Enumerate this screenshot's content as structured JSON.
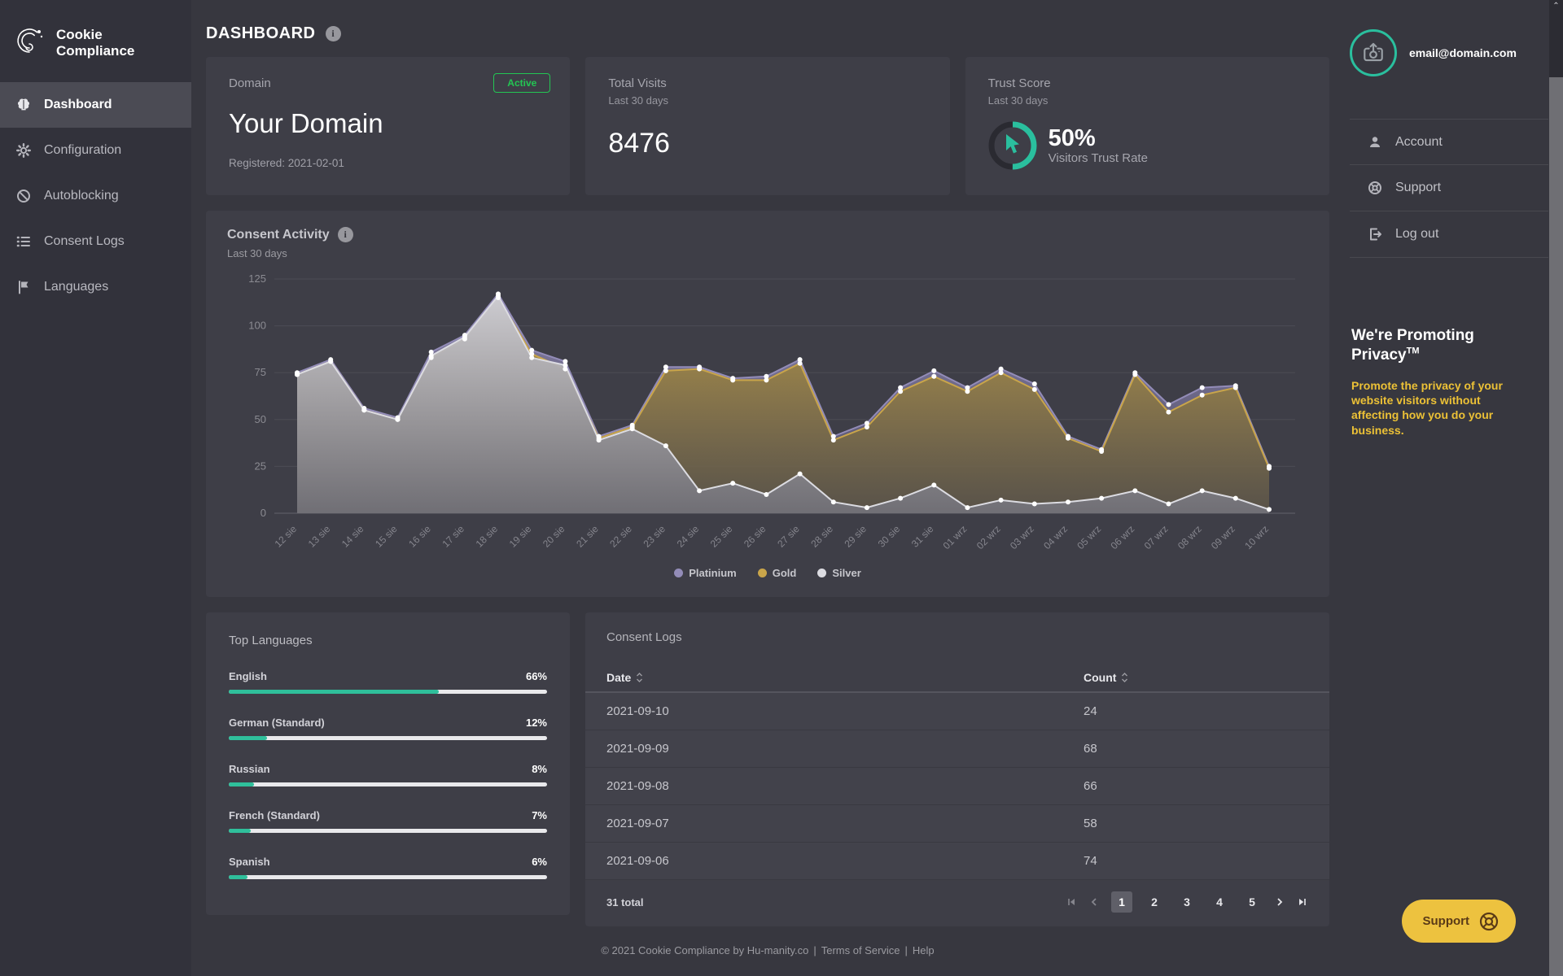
{
  "app": {
    "brand": "Cookie Compliance",
    "page_title": "DASHBOARD"
  },
  "sidebar": {
    "items": [
      {
        "label": "Dashboard",
        "active": true
      },
      {
        "label": "Configuration",
        "active": false
      },
      {
        "label": "Autoblocking",
        "active": false
      },
      {
        "label": "Consent Logs",
        "active": false
      },
      {
        "label": "Languages",
        "active": false
      }
    ]
  },
  "cards": {
    "domain": {
      "label": "Domain",
      "badge": "Active",
      "value": "Your Domain",
      "registered": "Registered: 2021-02-01"
    },
    "visits": {
      "label": "Total Visits",
      "sublabel": "Last 30 days",
      "value": "8476"
    },
    "trust": {
      "label": "Trust Score",
      "sublabel": "Last 30 days",
      "value": "50%",
      "percent": 50,
      "caption": "Visitors Trust Rate"
    }
  },
  "consent_activity": {
    "title": "Consent Activity",
    "sublabel": "Last 30 days"
  },
  "chart_data": {
    "type": "area",
    "title": "Consent Activity",
    "subtitle": "Last 30 days",
    "xlabel": "",
    "ylabel": "",
    "ylim": [
      0,
      125
    ],
    "yticks": [
      0,
      25,
      50,
      75,
      100,
      125
    ],
    "grid": true,
    "legend_position": "bottom",
    "categories": [
      "12 sie",
      "13 sie",
      "14 sie",
      "15 sie",
      "16 sie",
      "17 sie",
      "18 sie",
      "19 sie",
      "20 sie",
      "21 sie",
      "22 sie",
      "23 sie",
      "24 sie",
      "25 sie",
      "26 sie",
      "27 sie",
      "28 sie",
      "29 sie",
      "30 sie",
      "31 sie",
      "01 wrz",
      "02 wrz",
      "03 wrz",
      "04 wrz",
      "05 wrz",
      "06 wrz",
      "07 wrz",
      "08 wrz",
      "09 wrz",
      "10 wrz"
    ],
    "series": [
      {
        "name": "Platinium",
        "color": "#938cb8",
        "fill_top": "rgba(143,136,179,0.95)",
        "fill_bottom": "rgba(100,95,130,0.5)",
        "values": [
          75,
          82,
          56,
          51,
          86,
          95,
          117,
          87,
          81,
          41,
          47,
          78,
          78,
          72,
          73,
          82,
          41,
          48,
          67,
          76,
          67,
          77,
          69,
          41,
          34,
          75,
          58,
          67,
          68,
          25
        ]
      },
      {
        "name": "Gold",
        "color": "#c9a54a",
        "fill_top": "rgba(183,151,64,0.95)",
        "fill_bottom": "rgba(92,84,58,0.65)",
        "values": [
          74,
          81,
          55,
          50,
          83,
          93,
          115,
          85,
          77,
          40,
          46,
          76,
          77,
          71,
          71,
          80,
          39,
          46,
          65,
          73,
          65,
          75,
          66,
          40,
          33,
          74,
          54,
          63,
          67,
          24
        ]
      },
      {
        "name": "Silver",
        "color": "#dcdce2",
        "fill_top": "rgba(205,205,213,0.97)",
        "fill_bottom": "rgba(118,118,128,0.8)",
        "values": [
          74,
          81,
          55,
          50,
          84,
          94,
          116,
          83,
          79,
          39,
          45,
          36,
          12,
          16,
          10,
          21,
          6,
          3,
          8,
          15,
          3,
          7,
          5,
          6,
          8,
          12,
          5,
          12,
          8,
          2
        ]
      }
    ]
  },
  "top_languages": {
    "title": "Top Languages",
    "rows": [
      {
        "label": "English",
        "percent": 66,
        "display": "66%"
      },
      {
        "label": "German (Standard)",
        "percent": 12,
        "display": "12%"
      },
      {
        "label": "Russian",
        "percent": 8,
        "display": "8%"
      },
      {
        "label": "French (Standard)",
        "percent": 7,
        "display": "7%"
      },
      {
        "label": "Spanish",
        "percent": 6,
        "display": "6%"
      }
    ]
  },
  "consent_logs": {
    "title": "Consent Logs",
    "columns": [
      "Date",
      "Count"
    ],
    "rows": [
      {
        "date": "2021-09-10",
        "count": "24"
      },
      {
        "date": "2021-09-09",
        "count": "68"
      },
      {
        "date": "2021-09-08",
        "count": "66"
      },
      {
        "date": "2021-09-07",
        "count": "58"
      },
      {
        "date": "2021-09-06",
        "count": "74"
      }
    ],
    "total": "31 total",
    "pages": [
      "1",
      "2",
      "3",
      "4",
      "5"
    ],
    "active_page": "1"
  },
  "footer": {
    "copyright": "© 2021 Cookie Compliance by Hu-manity.co",
    "separator": "|",
    "terms": "Terms of Service",
    "help": "Help"
  },
  "account_menu": {
    "email": "email@domain.com",
    "items": [
      {
        "label": "Account"
      },
      {
        "label": "Support"
      },
      {
        "label": "Log out"
      }
    ]
  },
  "promo": {
    "title": "We're Promoting Privacy",
    "tm": "TM",
    "body": "Promote the privacy of your website visitors without affecting how you do your business."
  },
  "support_button": {
    "label": "Support"
  },
  "colors": {
    "accent_teal": "#2abf9e",
    "badge_green": "#23c653",
    "promo_yellow": "#ecc136",
    "support_yellow": "#edc23f"
  }
}
